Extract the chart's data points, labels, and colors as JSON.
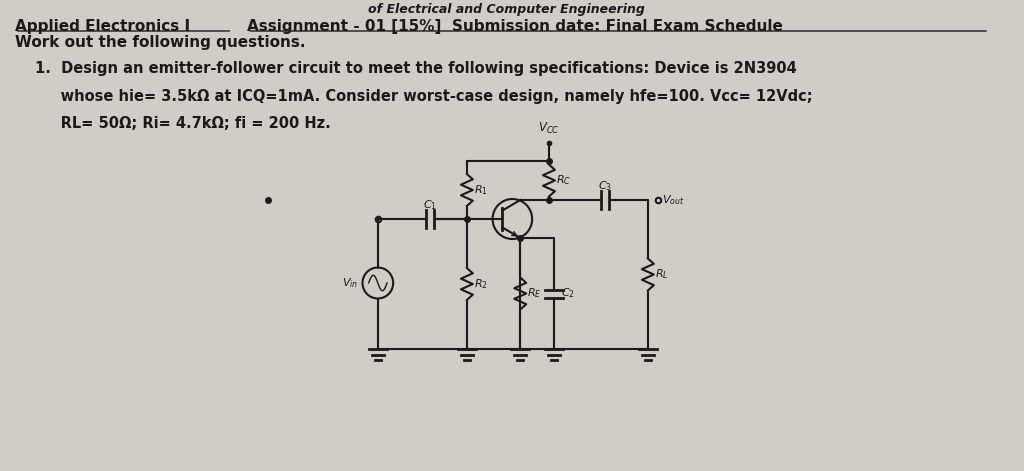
{
  "background_color": "#d0ccc8",
  "text_color": "#1a1a1a",
  "font_size_header": 11,
  "font_size_body": 10.5,
  "title_partial": "of Electrical and Computer Engineering",
  "header_left": "Applied Electronics I",
  "header_right": "Assignment - 01 [15%]  Submission date: Final Exam Schedule",
  "header_line2": "Work out the following questions.",
  "q1_line1": "1.  Design an emitter-follower circuit to meet the following specifications: Device is 2N3904",
  "q1_line2": "     whose hie= 3.5kΩ at ICQ=1mA. Consider worst-case design, namely hfe=100. Vcc= 12Vdc;",
  "q1_line3": "     RL= 50Ω; Ri= 4.7kΩ; fi = 200 Hz."
}
